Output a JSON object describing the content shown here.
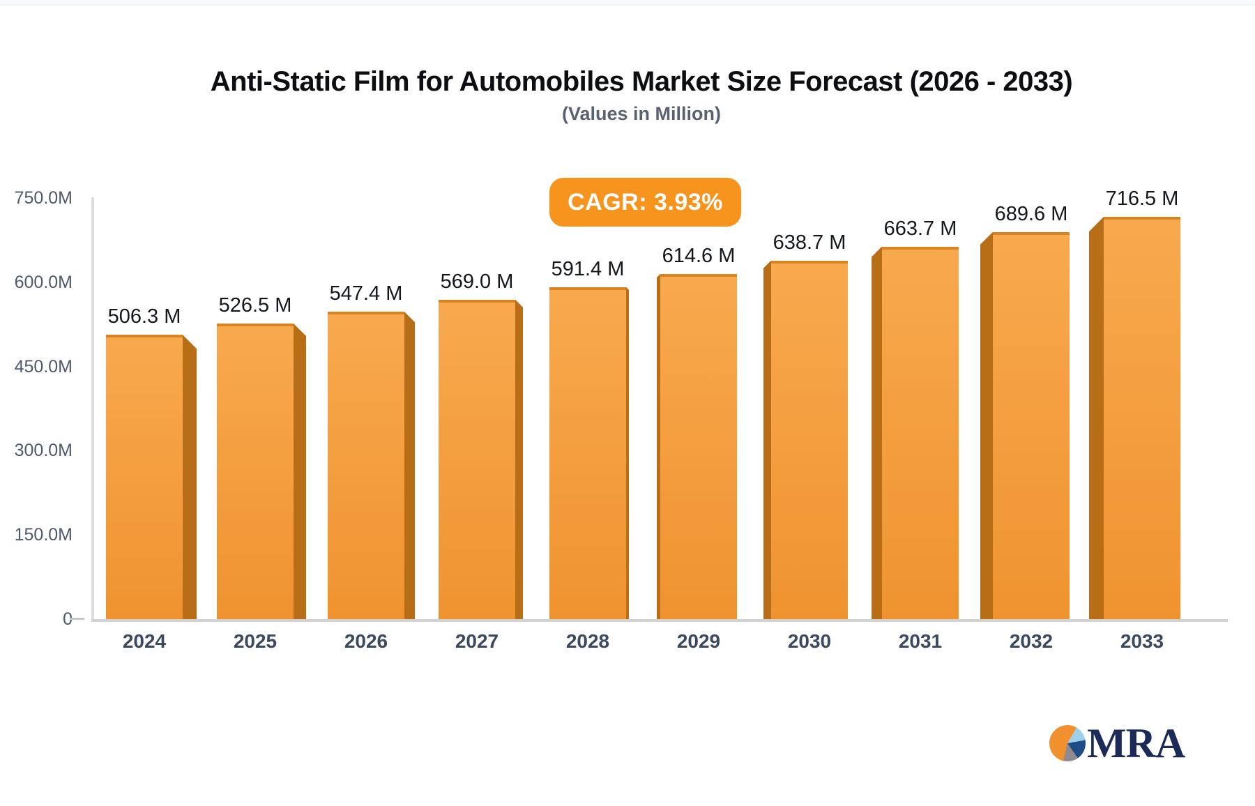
{
  "page": {
    "title": "Anti-Static Film for Automobiles Market Size Forecast (2026 - 2033)",
    "subtitle": "(Values in Million)",
    "cagr_badge": "CAGR: 3.93%"
  },
  "chart_data": {
    "type": "bar",
    "title": "Anti-Static Film for Automobiles Market Size Forecast (2026 - 2033)",
    "subtitle": "(Values in Million)",
    "categories": [
      "2024",
      "2025",
      "2026",
      "2027",
      "2028",
      "2029",
      "2030",
      "2031",
      "2032",
      "2033"
    ],
    "values": [
      506.3,
      526.5,
      547.4,
      569.0,
      591.4,
      614.6,
      638.7,
      663.7,
      689.6,
      716.5
    ],
    "value_labels": [
      "506.3 M",
      "526.5 M",
      "547.4 M",
      "569.0 M",
      "591.4 M",
      "614.6 M",
      "638.7 M",
      "663.7 M",
      "689.6 M",
      "716.5 M"
    ],
    "annotation": "CAGR: 3.93%",
    "xlabel": "",
    "ylabel": "",
    "ylim": [
      0,
      750
    ],
    "ytick_values": [
      0,
      150,
      300,
      450,
      600,
      750
    ],
    "ytick_labels": [
      "0",
      "150.0M",
      "300.0M",
      "450.0M",
      "600.0M",
      "750.0M"
    ],
    "grid": false,
    "legend": false,
    "bar_style": "3d-perspective"
  },
  "colors": {
    "bar_face_top": "#f8a94e",
    "bar_face_bottom": "#ef9330",
    "bar_top_edge": "#d98420",
    "bar_side_face": "#b76e17",
    "badge_background": "#f7941e",
    "badge_text": "#ffffff",
    "axis_line": "#d2d2d2",
    "title_text": "#0c0e12",
    "subtitle_text": "#5a6270",
    "tick_text": "#4e5a6b",
    "category_text": "#3c485e",
    "logo_navy": "#1b2a56",
    "logo_orange": "#f0912d",
    "logo_lightblue": "#9fd0ea",
    "logo_gray": "#8e8a90"
  },
  "logo": {
    "text": "MRA"
  }
}
